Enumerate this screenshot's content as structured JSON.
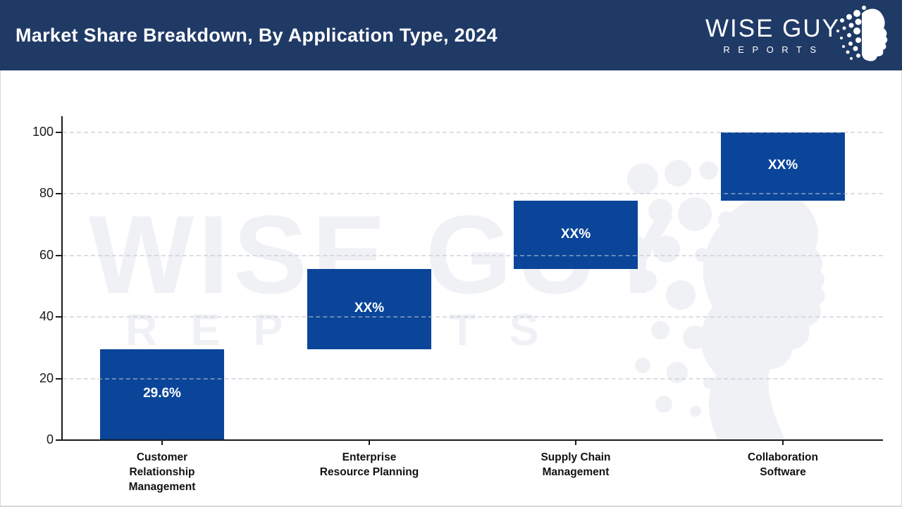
{
  "header": {
    "title": "Market Share Breakdown, By Application Type, 2024",
    "background_color": "#203a66",
    "logo": {
      "primary": "WISE GUY",
      "secondary": "REPORTS"
    }
  },
  "watermark": {
    "line1": "WISE GUY",
    "line2": "REPORTS"
  },
  "icons": {
    "logo_face": "wiseguy-face-icon",
    "watermark_face": "wiseguy-face-watermark"
  },
  "chart_data": {
    "type": "bar",
    "subtype": "waterfall",
    "title": "Market Share Breakdown, By Application Type, 2024",
    "categories": [
      "Customer\nRelationship\nManagement",
      "Enterprise\nResource Planning",
      "Supply Chain\nManagement",
      "Collaboration\nSoftware"
    ],
    "segments": [
      {
        "category": "Customer Relationship Management",
        "start": 0,
        "end": 29.6,
        "label": "29.6%"
      },
      {
        "category": "Enterprise Resource Planning",
        "start": 29.6,
        "end": 55.5,
        "label": "XX%"
      },
      {
        "category": "Supply Chain Management",
        "start": 55.5,
        "end": 77.7,
        "label": "XX%"
      },
      {
        "category": "Collaboration Software",
        "start": 77.7,
        "end": 100,
        "label": "XX%"
      }
    ],
    "yticks": [
      0,
      20,
      40,
      60,
      80,
      100
    ],
    "ylim": [
      0,
      100
    ],
    "grid": "horizontal-dashed",
    "legend": "none",
    "bar_color": "#0a4599",
    "bar_label_color": "#ffffff",
    "axis_color": "#1a1a1a",
    "gridline_color": "#d9d9d9"
  }
}
